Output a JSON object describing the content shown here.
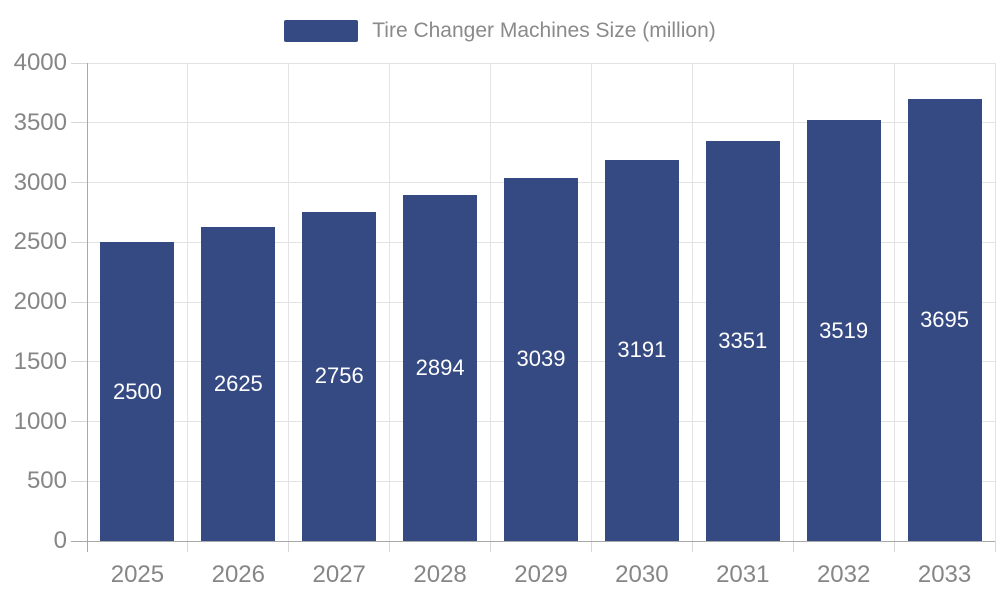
{
  "legend": {
    "label": "Tire Changer Machines Size (million)"
  },
  "colors": {
    "background": "#ffffff",
    "bar": "#354983",
    "bar_label_text": "#ffffff",
    "legend_text": "#8a8a8a",
    "axis_label_text": "#868686",
    "grid_line": "#e3e3e3",
    "axis_line": "#a8a8a8",
    "tick_line": "#d6d6d6"
  },
  "chart_data": {
    "type": "bar",
    "title": "",
    "xlabel": "",
    "ylabel": "",
    "series": [
      {
        "name": "Tire Changer Machines Size (million)",
        "values": [
          2500,
          2625,
          2756,
          2894,
          3039,
          3191,
          3351,
          3519,
          3695
        ]
      }
    ],
    "categories": [
      "2025",
      "2026",
      "2027",
      "2028",
      "2029",
      "2030",
      "2031",
      "2032",
      "2033"
    ],
    "value_labels": [
      "2500",
      "2625",
      "2756",
      "2894",
      "3039",
      "3191",
      "3351",
      "3519",
      "3695"
    ],
    "value_labels_position": "inside-center",
    "ylim": [
      0,
      4000
    ],
    "ytick_step": 500,
    "ytick_labels": [
      "0",
      "500",
      "1000",
      "1500",
      "2000",
      "2500",
      "3000",
      "3500",
      "4000"
    ],
    "grid": "on",
    "legend_position": "top-center"
  }
}
